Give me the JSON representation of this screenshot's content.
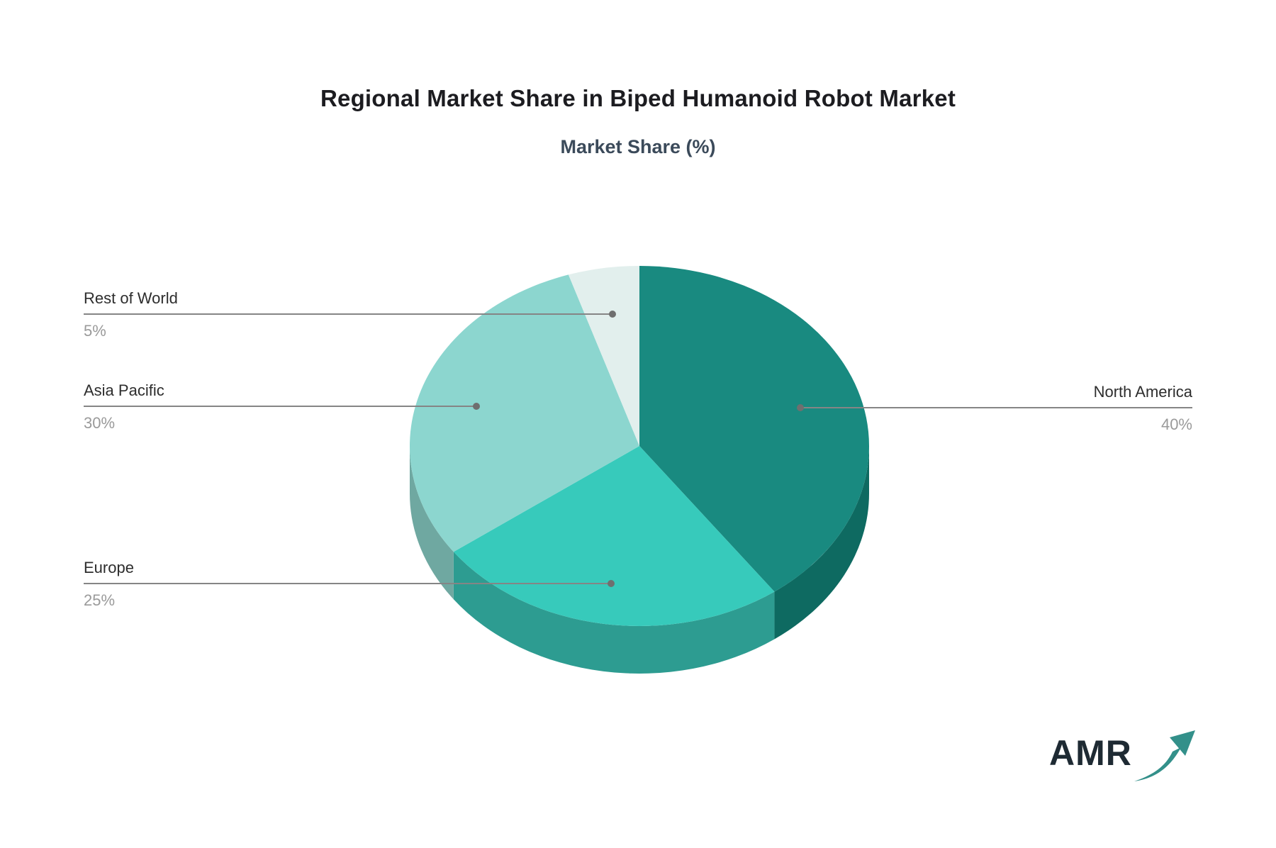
{
  "header": {
    "title": "Regional Market Share in Biped Humanoid Robot Market",
    "subtitle": "Market Share (%)"
  },
  "chart_data": {
    "type": "pie",
    "title": "Regional Market Share in Biped Humanoid Robot Market",
    "subtitle": "Market Share (%)",
    "unit": "%",
    "style": "3d",
    "start_angle_deg": 0,
    "direction": "clockwise",
    "legend_position": "leader-line callout labels",
    "slices": [
      {
        "label": "North America",
        "value": 40,
        "pct_text": "40%",
        "color": "#198a80",
        "side_color": "#0e6a61"
      },
      {
        "label": "Europe",
        "value": 25,
        "pct_text": "25%",
        "color": "#37cabb",
        "side_color": "#2d9c91"
      },
      {
        "label": "Asia Pacific",
        "value": 30,
        "pct_text": "30%",
        "color": "#8cd6cf",
        "side_color": "#6fa8a1"
      },
      {
        "label": "Rest of World",
        "value": 5,
        "pct_text": "5%",
        "color": "#e2efed",
        "side_color": "#c9dedb"
      }
    ]
  },
  "logo": {
    "text": "AMR",
    "text_color": "#1e2a33",
    "arrow_color": "#33908a"
  }
}
